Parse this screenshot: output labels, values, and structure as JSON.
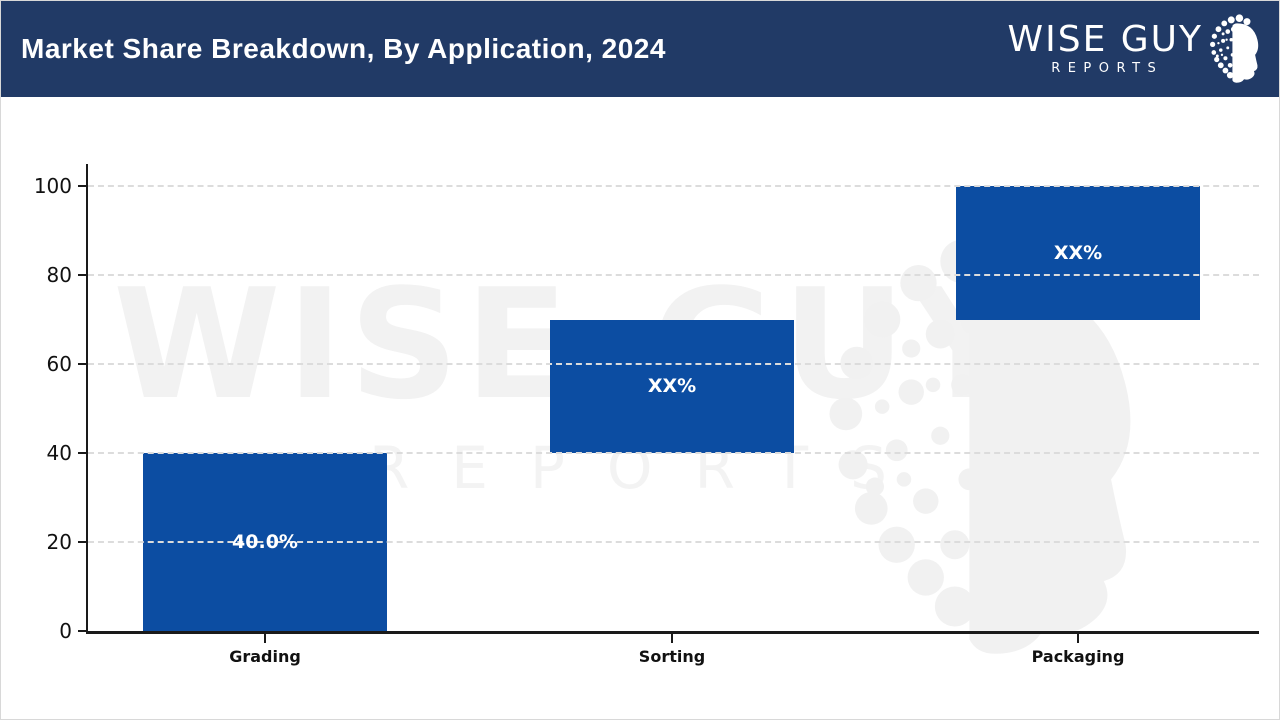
{
  "header": {
    "title": "Market Share Breakdown, By Application, 2024",
    "logo": {
      "name": "WISE GUY",
      "tagline": "REPORTS"
    }
  },
  "watermark": {
    "text_primary": "WISE GUY",
    "text_secondary": "REPORTS"
  },
  "chart_data": {
    "type": "bar",
    "variant": "waterfall-segments",
    "title": "Market Share Breakdown, By Application, 2024",
    "categories": [
      "Grading",
      "Sorting",
      "Packaging"
    ],
    "segments": [
      {
        "category": "Grading",
        "start": 0,
        "end": 40,
        "label": "40.0%"
      },
      {
        "category": "Sorting",
        "start": 40,
        "end": 70,
        "label": "XX%"
      },
      {
        "category": "Packaging",
        "start": 70,
        "end": 100,
        "label": "XX%"
      }
    ],
    "ylim": [
      0,
      100
    ],
    "yticks": [
      0,
      20,
      40,
      60,
      80,
      100
    ],
    "xlabel": "",
    "ylabel": "",
    "grid": "horizontal-dashed",
    "legend": "none",
    "colors": {
      "bar": "#0C4DA2",
      "bar_label": "#FFFFFF",
      "axis": "#1A1A1A",
      "gridline": "#DCDCDC",
      "header_bg": "#213A66",
      "header_text": "#FFFFFF",
      "watermark": "#F2F2F2"
    }
  }
}
